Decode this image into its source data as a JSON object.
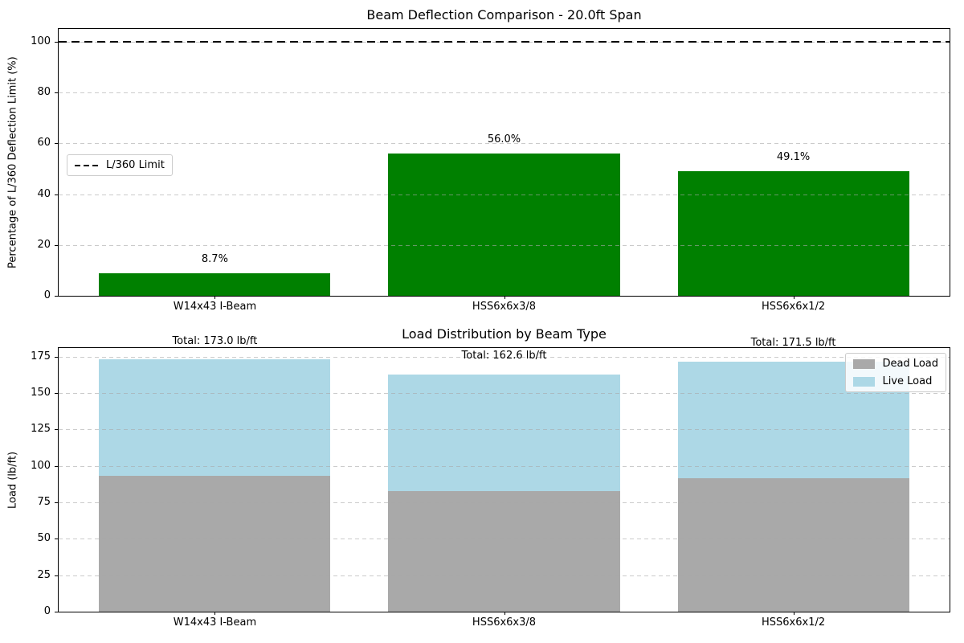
{
  "figure": {
    "background": "#ffffff"
  },
  "chart_data": [
    {
      "type": "bar",
      "title": "Beam Deflection Comparison - 20.0ft Span",
      "xlabel": "",
      "ylabel": "Percentage of L/360 Deflection Limit (%)",
      "categories": [
        "W14x43 I-Beam",
        "HSS6x6x3/8",
        "HSS6x6x1/2"
      ],
      "values": [
        8.7,
        56.0,
        49.1
      ],
      "bar_labels": [
        "8.7%",
        "56.0%",
        "49.1%"
      ],
      "bar_color": "#008000",
      "yticks": [
        0,
        20,
        40,
        60,
        80,
        100
      ],
      "ylim": [
        0,
        105
      ],
      "grid": "dashed-horizontal",
      "limit_line": {
        "value": 100,
        "label": "L/360 Limit",
        "color": "#000000",
        "style": "dashed"
      },
      "legend": {
        "position": "center-left",
        "entries": [
          {
            "label": "L/360 Limit",
            "marker": "dashed-line",
            "color": "#000000"
          }
        ]
      }
    },
    {
      "type": "stacked-bar",
      "title": "Load Distribution by Beam Type",
      "xlabel": "",
      "ylabel": "Load (lb/ft)",
      "categories": [
        "W14x43 I-Beam",
        "HSS6x6x3/8",
        "HSS6x6x1/2"
      ],
      "series": [
        {
          "name": "Dead Load",
          "values": [
            93.0,
            82.6,
            91.5
          ],
          "color": "#a9a9a9"
        },
        {
          "name": "Live Load",
          "values": [
            80.0,
            80.0,
            80.0
          ],
          "color": "#add8e6"
        }
      ],
      "totals": [
        173.0,
        162.6,
        171.5
      ],
      "total_labels": [
        "Total: 173.0 lb/ft",
        "Total: 162.6 lb/ft",
        "Total: 171.5 lb/ft"
      ],
      "yticks": [
        0,
        25,
        50,
        75,
        100,
        125,
        150,
        175
      ],
      "ylim": [
        0,
        181
      ],
      "grid": "dashed-horizontal",
      "legend": {
        "position": "top-right",
        "entries": [
          {
            "label": "Dead Load",
            "marker": "swatch",
            "color": "#a9a9a9"
          },
          {
            "label": "Live Load",
            "marker": "swatch",
            "color": "#add8e6"
          }
        ]
      }
    }
  ]
}
